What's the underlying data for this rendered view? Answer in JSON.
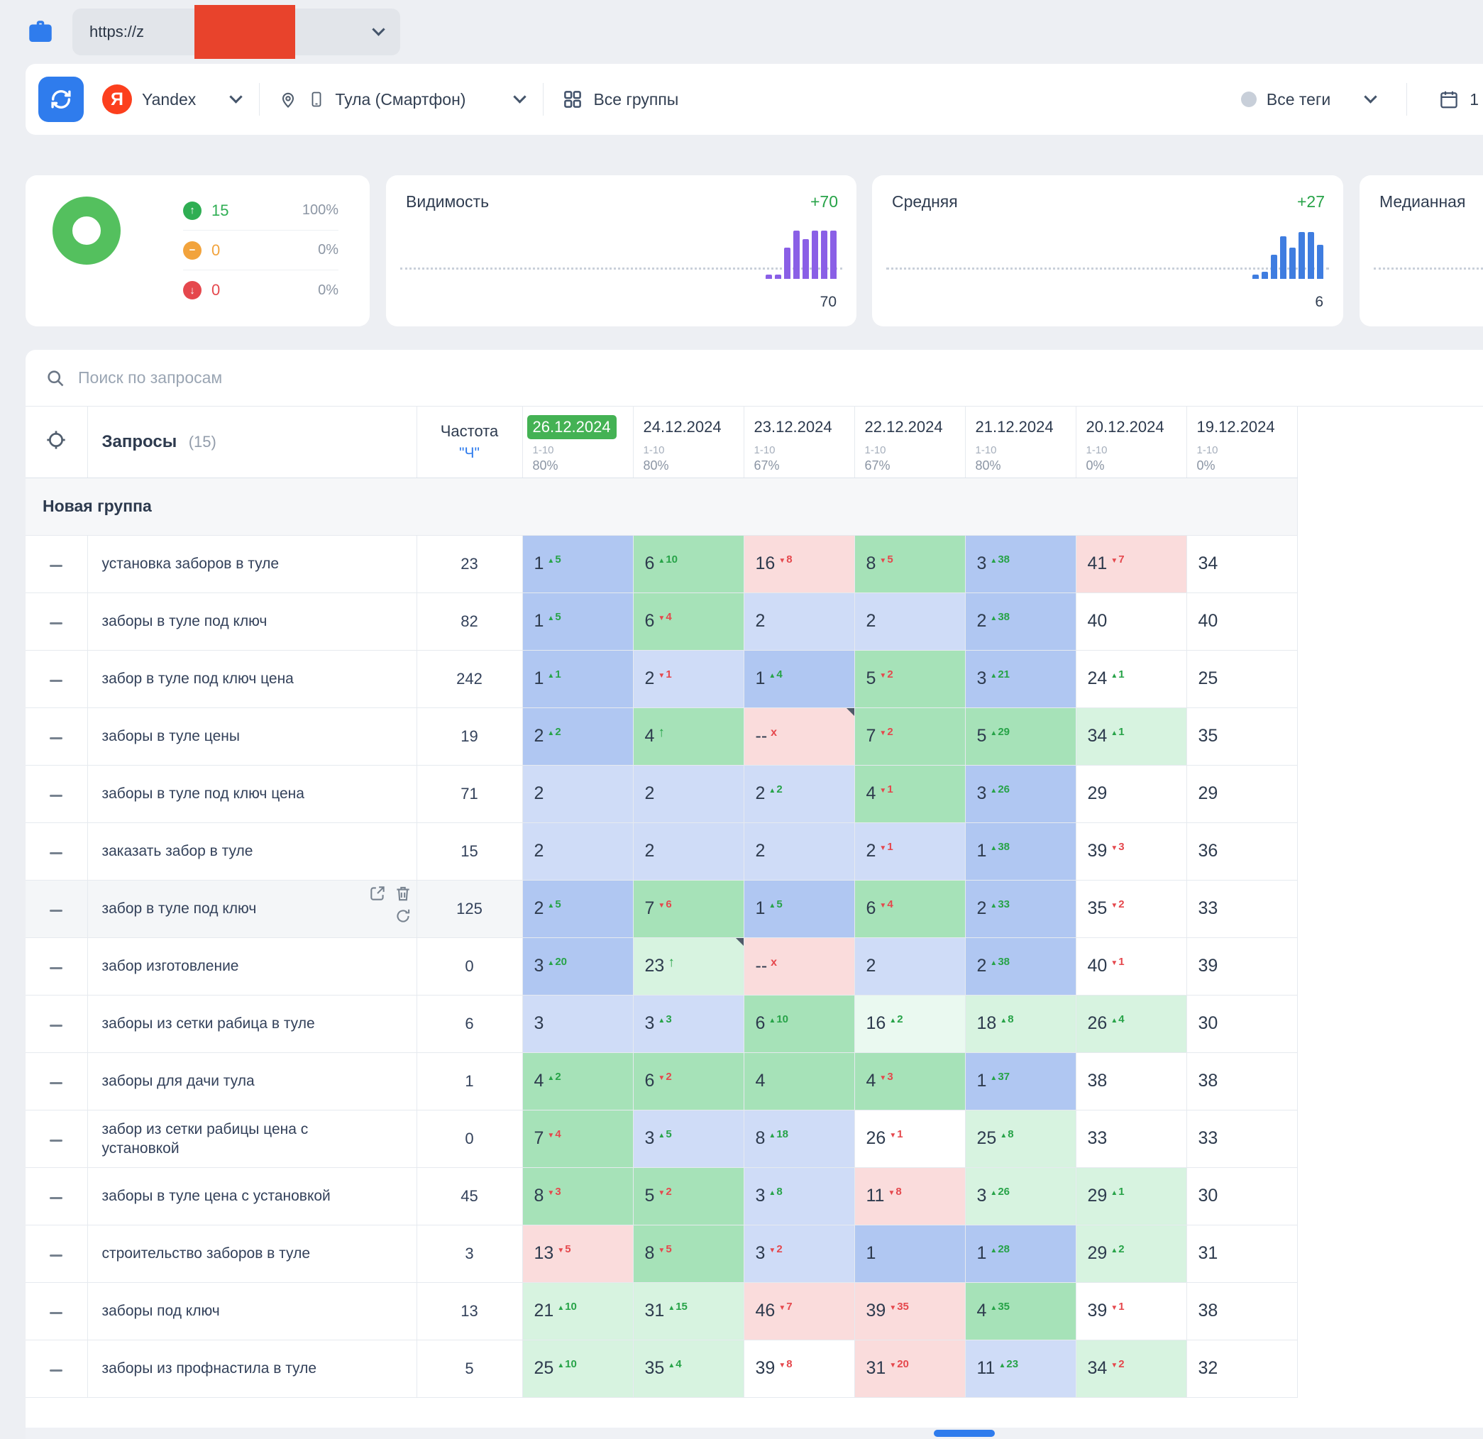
{
  "browser": {
    "url_prefix": "https://z"
  },
  "toolbar": {
    "engine_letter": "Я",
    "engine": "Yandex",
    "region": "Тула (Смартфон)",
    "groups": "Все группы",
    "tags": "Все теги",
    "date_fragment": "1"
  },
  "summary": {
    "donut": {
      "up": {
        "count": "15",
        "pct": "100%"
      },
      "same": {
        "count": "0",
        "pct": "0%"
      },
      "down": {
        "count": "0",
        "pct": "0%"
      }
    },
    "visibility": {
      "title": "Видимость",
      "delta": "+70",
      "value": "70",
      "color": "#8a5fe6",
      "bars": [
        6,
        6,
        44,
        68,
        56,
        68,
        68,
        68
      ]
    },
    "average": {
      "title": "Средняя",
      "delta": "+27",
      "value": "6",
      "color": "#3f7de0",
      "bars": [
        6,
        10,
        34,
        60,
        44,
        66,
        66,
        48
      ]
    },
    "median": {
      "title": "Медианная"
    }
  },
  "search": {
    "placeholder": "Поиск по запросам"
  },
  "colors": {
    "accent_blue": "#2f7ced",
    "selected_date": "#44b254",
    "up_green": "#27a348",
    "down_red": "#e5484d",
    "donut_green": "#54c05e",
    "cells": {
      "b": "#b0c7f2",
      "lb": "#cfdcf7",
      "g": "#a6e2b8",
      "lg": "#d7f3e0",
      "vlg": "#eaf9f0",
      "p": "#fadcdc",
      "w": "#ffffff"
    }
  },
  "table": {
    "queries_label": "Запросы",
    "queries_count": "(15)",
    "freq_label": "Частота",
    "freq_unit": "\"Ч\"",
    "group": "Новая группа",
    "dates": [
      {
        "label": "26.12.2024",
        "top": "1-10",
        "pct": "80%",
        "selected": true
      },
      {
        "label": "24.12.2024",
        "top": "1-10",
        "pct": "80%"
      },
      {
        "label": "23.12.2024",
        "top": "1-10",
        "pct": "67%"
      },
      {
        "label": "22.12.2024",
        "top": "1-10",
        "pct": "67%"
      },
      {
        "label": "21.12.2024",
        "top": "1-10",
        "pct": "80%"
      },
      {
        "label": "20.12.2024",
        "top": "1-10",
        "pct": "0%"
      },
      {
        "label": "19.12.2024",
        "top": "1-10",
        "pct": "0%"
      }
    ],
    "rows": [
      {
        "name": "установка заборов в туле",
        "freq": "23",
        "cells": [
          {
            "v": "1",
            "d": "5",
            "dir": "up",
            "bg": "b"
          },
          {
            "v": "6",
            "d": "10",
            "dir": "up",
            "bg": "g"
          },
          {
            "v": "16",
            "d": "8",
            "dir": "dn",
            "bg": "p"
          },
          {
            "v": "8",
            "d": "5",
            "dir": "dn",
            "bg": "g"
          },
          {
            "v": "3",
            "d": "38",
            "dir": "up",
            "bg": "b"
          },
          {
            "v": "41",
            "d": "7",
            "dir": "dn",
            "bg": "p"
          },
          {
            "v": "34",
            "bg": "w"
          }
        ]
      },
      {
        "name": "заборы в туле под ключ",
        "freq": "82",
        "cells": [
          {
            "v": "1",
            "d": "5",
            "dir": "up",
            "bg": "b"
          },
          {
            "v": "6",
            "d": "4",
            "dir": "dn",
            "bg": "g"
          },
          {
            "v": "2",
            "bg": "lb"
          },
          {
            "v": "2",
            "bg": "lb"
          },
          {
            "v": "2",
            "d": "38",
            "dir": "up",
            "bg": "b"
          },
          {
            "v": "40",
            "bg": "w"
          },
          {
            "v": "40",
            "bg": "w"
          }
        ]
      },
      {
        "name": "забор в туле под ключ цена",
        "freq": "242",
        "cells": [
          {
            "v": "1",
            "d": "1",
            "dir": "up",
            "bg": "b"
          },
          {
            "v": "2",
            "d": "1",
            "dir": "dn",
            "bg": "lb"
          },
          {
            "v": "1",
            "d": "4",
            "dir": "up",
            "bg": "b"
          },
          {
            "v": "5",
            "d": "2",
            "dir": "dn",
            "bg": "g"
          },
          {
            "v": "3",
            "d": "21",
            "dir": "up",
            "bg": "b"
          },
          {
            "v": "24",
            "d": "1",
            "dir": "up",
            "bg": "w"
          },
          {
            "v": "25",
            "bg": "w"
          }
        ]
      },
      {
        "name": "заборы в туле цены",
        "freq": "19",
        "cells": [
          {
            "v": "2",
            "d": "2",
            "dir": "up",
            "bg": "b"
          },
          {
            "v": "4",
            "dir": "arrow",
            "bg": "g"
          },
          {
            "v": "--",
            "dir": "x",
            "bg": "p",
            "corner": true
          },
          {
            "v": "7",
            "d": "2",
            "dir": "dn",
            "bg": "g"
          },
          {
            "v": "5",
            "d": "29",
            "dir": "up",
            "bg": "g"
          },
          {
            "v": "34",
            "d": "1",
            "dir": "up",
            "bg": "lg"
          },
          {
            "v": "35",
            "bg": "w"
          }
        ]
      },
      {
        "name": "заборы в туле под ключ цена",
        "freq": "71",
        "cells": [
          {
            "v": "2",
            "bg": "lb"
          },
          {
            "v": "2",
            "bg": "lb"
          },
          {
            "v": "2",
            "d": "2",
            "dir": "up",
            "bg": "lb"
          },
          {
            "v": "4",
            "d": "1",
            "dir": "dn",
            "bg": "g"
          },
          {
            "v": "3",
            "d": "26",
            "dir": "up",
            "bg": "b"
          },
          {
            "v": "29",
            "bg": "w"
          },
          {
            "v": "29",
            "bg": "w"
          }
        ]
      },
      {
        "name": "заказать забор в туле",
        "freq": "15",
        "cells": [
          {
            "v": "2",
            "bg": "lb"
          },
          {
            "v": "2",
            "bg": "lb"
          },
          {
            "v": "2",
            "bg": "lb"
          },
          {
            "v": "2",
            "d": "1",
            "dir": "dn",
            "bg": "lb"
          },
          {
            "v": "1",
            "d": "38",
            "dir": "up",
            "bg": "b"
          },
          {
            "v": "39",
            "d": "3",
            "dir": "dn",
            "bg": "w"
          },
          {
            "v": "36",
            "bg": "w"
          }
        ]
      },
      {
        "name": "забор в туле под ключ",
        "freq": "125",
        "active": true,
        "cells": [
          {
            "v": "2",
            "d": "5",
            "dir": "up",
            "bg": "b"
          },
          {
            "v": "7",
            "d": "6",
            "dir": "dn",
            "bg": "g"
          },
          {
            "v": "1",
            "d": "5",
            "dir": "up",
            "bg": "b"
          },
          {
            "v": "6",
            "d": "4",
            "dir": "dn",
            "bg": "g"
          },
          {
            "v": "2",
            "d": "33",
            "dir": "up",
            "bg": "b"
          },
          {
            "v": "35",
            "d": "2",
            "dir": "dn",
            "bg": "w"
          },
          {
            "v": "33",
            "bg": "w"
          }
        ]
      },
      {
        "name": "забор изготовление",
        "freq": "0",
        "cells": [
          {
            "v": "3",
            "d": "20",
            "dir": "up",
            "bg": "b"
          },
          {
            "v": "23",
            "dir": "arrow",
            "bg": "lg",
            "corner": true
          },
          {
            "v": "--",
            "dir": "x",
            "bg": "p"
          },
          {
            "v": "2",
            "bg": "lb"
          },
          {
            "v": "2",
            "d": "38",
            "dir": "up",
            "bg": "b"
          },
          {
            "v": "40",
            "d": "1",
            "dir": "dn",
            "bg": "w"
          },
          {
            "v": "39",
            "bg": "w"
          }
        ]
      },
      {
        "name": "заборы из сетки рабица в туле",
        "freq": "6",
        "cells": [
          {
            "v": "3",
            "bg": "lb"
          },
          {
            "v": "3",
            "d": "3",
            "dir": "up",
            "bg": "lb"
          },
          {
            "v": "6",
            "d": "10",
            "dir": "up",
            "bg": "g"
          },
          {
            "v": "16",
            "d": "2",
            "dir": "up",
            "bg": "vlg"
          },
          {
            "v": "18",
            "d": "8",
            "dir": "up",
            "bg": "lg"
          },
          {
            "v": "26",
            "d": "4",
            "dir": "up",
            "bg": "lg"
          },
          {
            "v": "30",
            "bg": "w"
          }
        ]
      },
      {
        "name": "заборы для дачи тула",
        "freq": "1",
        "cells": [
          {
            "v": "4",
            "d": "2",
            "dir": "up",
            "bg": "g"
          },
          {
            "v": "6",
            "d": "2",
            "dir": "dn",
            "bg": "g"
          },
          {
            "v": "4",
            "bg": "g"
          },
          {
            "v": "4",
            "d": "3",
            "dir": "dn",
            "bg": "g"
          },
          {
            "v": "1",
            "d": "37",
            "dir": "up",
            "bg": "b"
          },
          {
            "v": "38",
            "bg": "w"
          },
          {
            "v": "38",
            "bg": "w"
          }
        ]
      },
      {
        "name": "забор из сетки рабицы цена с установкой",
        "freq": "0",
        "cells": [
          {
            "v": "7",
            "d": "4",
            "dir": "dn",
            "bg": "g"
          },
          {
            "v": "3",
            "d": "5",
            "dir": "up",
            "bg": "lb"
          },
          {
            "v": "8",
            "d": "18",
            "dir": "up",
            "bg": "lb"
          },
          {
            "v": "26",
            "d": "1",
            "dir": "dn",
            "bg": "w"
          },
          {
            "v": "25",
            "d": "8",
            "dir": "up",
            "bg": "lg"
          },
          {
            "v": "33",
            "bg": "w"
          },
          {
            "v": "33",
            "bg": "w"
          }
        ]
      },
      {
        "name": "заборы в туле цена с установкой",
        "freq": "45",
        "cells": [
          {
            "v": "8",
            "d": "3",
            "dir": "dn",
            "bg": "g"
          },
          {
            "v": "5",
            "d": "2",
            "dir": "dn",
            "bg": "g"
          },
          {
            "v": "3",
            "d": "8",
            "dir": "up",
            "bg": "lb"
          },
          {
            "v": "11",
            "d": "8",
            "dir": "dn",
            "bg": "p"
          },
          {
            "v": "3",
            "d": "26",
            "dir": "up",
            "bg": "lg"
          },
          {
            "v": "29",
            "d": "1",
            "dir": "up",
            "bg": "lg"
          },
          {
            "v": "30",
            "bg": "w"
          }
        ]
      },
      {
        "name": "строительство заборов в туле",
        "freq": "3",
        "cells": [
          {
            "v": "13",
            "d": "5",
            "dir": "dn",
            "bg": "p"
          },
          {
            "v": "8",
            "d": "5",
            "dir": "dn",
            "bg": "g"
          },
          {
            "v": "3",
            "d": "2",
            "dir": "dn",
            "bg": "lb"
          },
          {
            "v": "1",
            "bg": "b"
          },
          {
            "v": "1",
            "d": "28",
            "dir": "up",
            "bg": "b"
          },
          {
            "v": "29",
            "d": "2",
            "dir": "up",
            "bg": "lg"
          },
          {
            "v": "31",
            "bg": "w"
          }
        ]
      },
      {
        "name": "заборы под ключ",
        "freq": "13",
        "cells": [
          {
            "v": "21",
            "d": "10",
            "dir": "up",
            "bg": "lg"
          },
          {
            "v": "31",
            "d": "15",
            "dir": "up",
            "bg": "lg"
          },
          {
            "v": "46",
            "d": "7",
            "dir": "dn",
            "bg": "p"
          },
          {
            "v": "39",
            "d": "35",
            "dir": "dn",
            "bg": "p"
          },
          {
            "v": "4",
            "d": "35",
            "dir": "up",
            "bg": "g"
          },
          {
            "v": "39",
            "d": "1",
            "dir": "dn",
            "bg": "w"
          },
          {
            "v": "38",
            "bg": "w"
          }
        ]
      },
      {
        "name": "заборы из профнастила в туле",
        "freq": "5",
        "cells": [
          {
            "v": "25",
            "d": "10",
            "dir": "up",
            "bg": "lg"
          },
          {
            "v": "35",
            "d": "4",
            "dir": "up",
            "bg": "lg"
          },
          {
            "v": "39",
            "d": "8",
            "dir": "dn",
            "bg": "w"
          },
          {
            "v": "31",
            "d": "20",
            "dir": "dn",
            "bg": "p"
          },
          {
            "v": "11",
            "d": "23",
            "dir": "up",
            "bg": "lb"
          },
          {
            "v": "34",
            "d": "2",
            "dir": "dn",
            "bg": "lg"
          },
          {
            "v": "32",
            "bg": "w"
          }
        ]
      }
    ]
  }
}
